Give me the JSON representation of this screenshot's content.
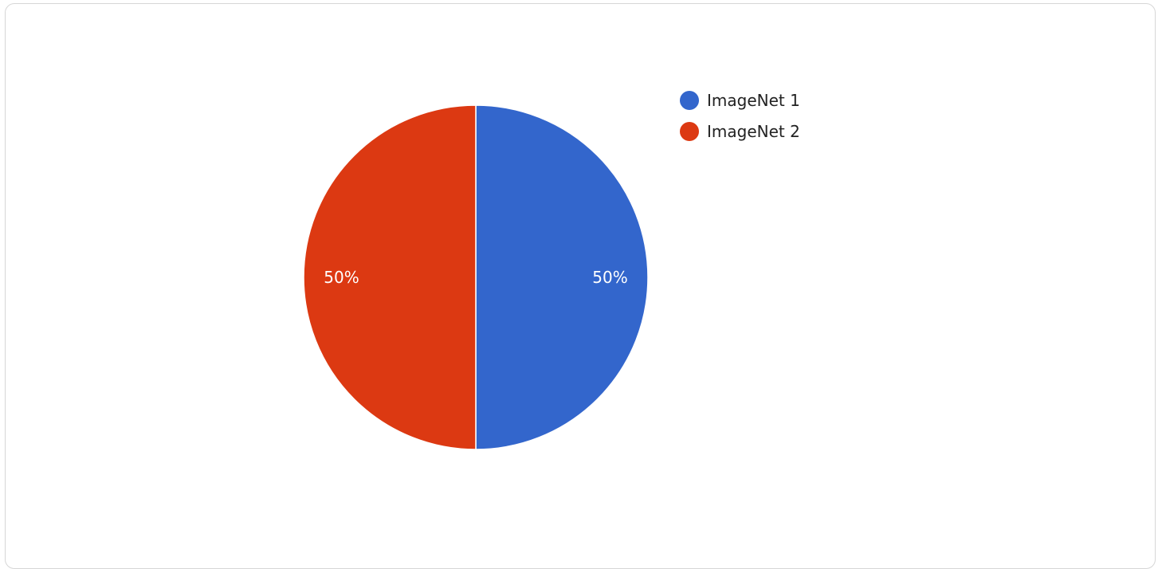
{
  "chart_data": {
    "type": "pie",
    "title": "",
    "slices": [
      {
        "label": "ImageNet 1",
        "value": 50,
        "percent_label": "50%",
        "color": "#3366cc"
      },
      {
        "label": "ImageNet 2",
        "value": 50,
        "percent_label": "50%",
        "color": "#dc3912"
      }
    ],
    "legend_position": "right"
  }
}
